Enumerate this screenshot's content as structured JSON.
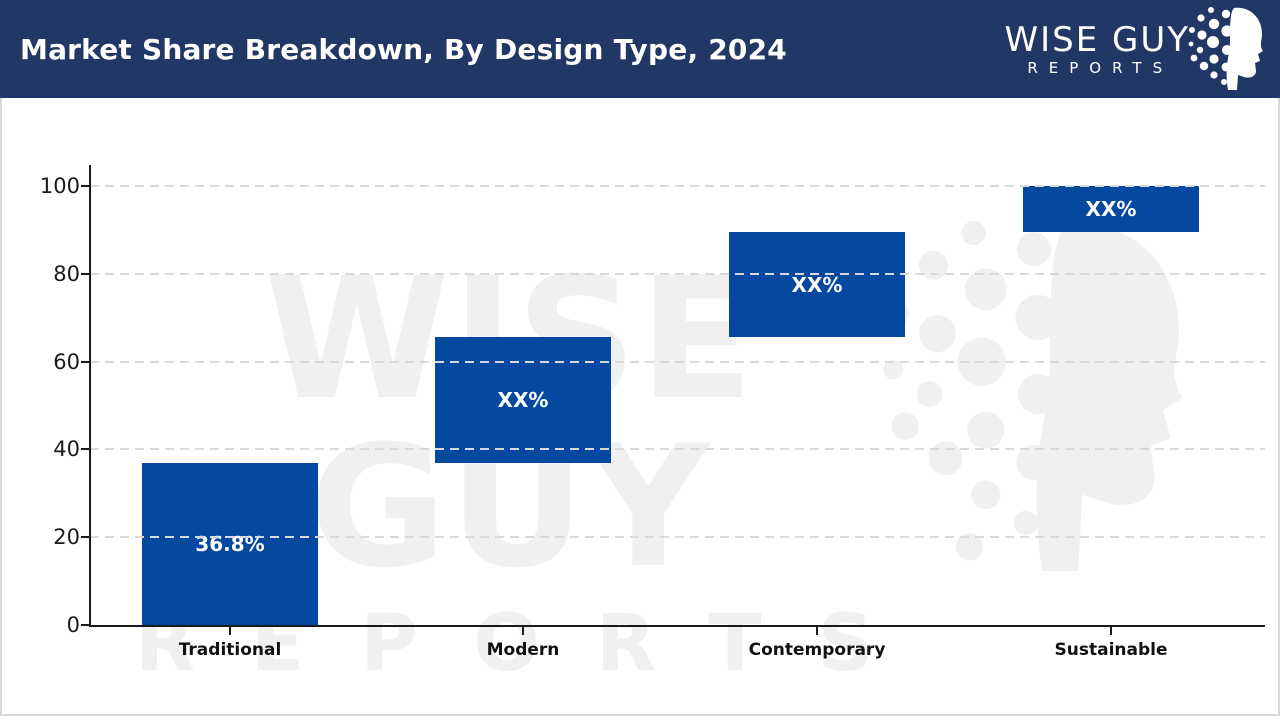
{
  "header": {
    "title": "Market Share Breakdown, By Design Type, 2024",
    "logo": {
      "line1": "WISE GUY",
      "line2": "REPORTS"
    }
  },
  "watermark": {
    "line1": "WISE GUY",
    "line2": "REPORTS"
  },
  "colors": {
    "header_bg": "#213866",
    "bar": "#0448a0",
    "gridline": "#d9d9d9",
    "watermark": "#f0f0f1",
    "axis": "#1a1a1a",
    "bar_label": "#ffffff"
  },
  "chart_data": {
    "type": "bar",
    "subtype": "waterfall",
    "title": "Market Share Breakdown, By Design Type, 2024",
    "categories": [
      "Traditional",
      "Modern",
      "Contemporary",
      "Sustainable"
    ],
    "segments": [
      {
        "category": "Traditional",
        "start": 0,
        "end": 36.8,
        "label": "36.8%"
      },
      {
        "category": "Modern",
        "start": 36.8,
        "end": 65.5,
        "label": "XX%"
      },
      {
        "category": "Contemporary",
        "start": 65.5,
        "end": 89.5,
        "label": "XX%"
      },
      {
        "category": "Sustainable",
        "start": 89.5,
        "end": 100,
        "label": "XX%"
      }
    ],
    "xlabel": "",
    "ylabel": "",
    "ylim": [
      0,
      100
    ],
    "yticks": [
      0,
      20,
      40,
      60,
      80,
      100
    ],
    "grid": "horizontal-dashed",
    "legend": "none",
    "bar_color": "#0448a0"
  }
}
